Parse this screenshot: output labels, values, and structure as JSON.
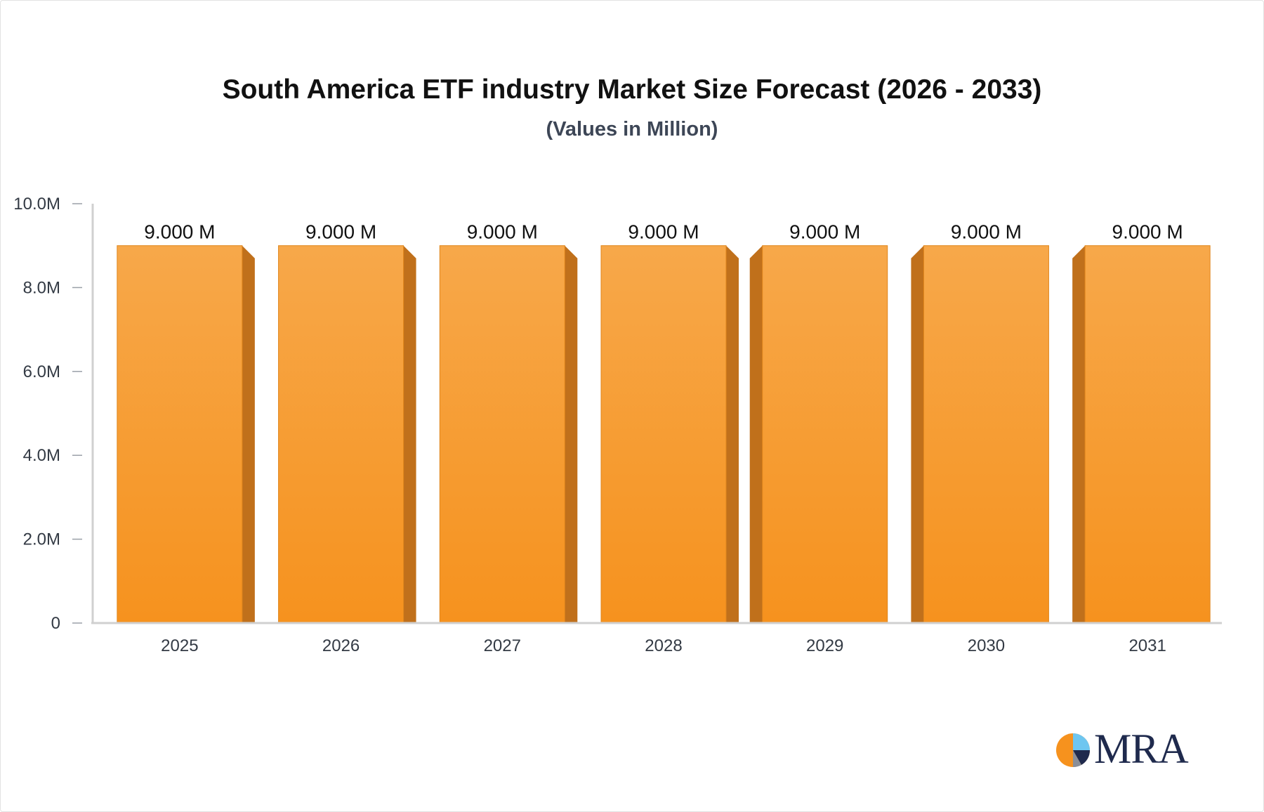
{
  "chart_data": {
    "type": "bar",
    "title": "South America ETF industry Market Size Forecast (2026 - 2033)",
    "subtitle": "(Values in Million)",
    "categories": [
      "2025",
      "2026",
      "2027",
      "2028",
      "2029",
      "2030",
      "2031"
    ],
    "values": [
      9.0,
      9.0,
      9.0,
      9.0,
      9.0,
      9.0,
      9.0
    ],
    "data_labels": [
      "9.000 M",
      "9.000 M",
      "9.000 M",
      "9.000 M",
      "9.000 M",
      "9.000 M",
      "9.000 M"
    ],
    "ylim": [
      0,
      10
    ],
    "yticks": [
      0,
      2,
      4,
      6,
      8,
      10
    ],
    "ytick_labels": [
      "0",
      "2.0M",
      "4.0M",
      "6.0M",
      "8.0M",
      "10.0M"
    ],
    "xlabel": "",
    "ylabel": "",
    "grid": false,
    "colors": {
      "bar_top": "#f7a84a",
      "bar_bottom": "#f6921e",
      "bar_side": "#c0701b",
      "axis": "#d0d0d0"
    }
  },
  "logo": {
    "text": "MRA",
    "colors": {
      "orange": "#f6921e",
      "navy": "#1f2a4d",
      "light_blue": "#6ec6f0"
    }
  }
}
